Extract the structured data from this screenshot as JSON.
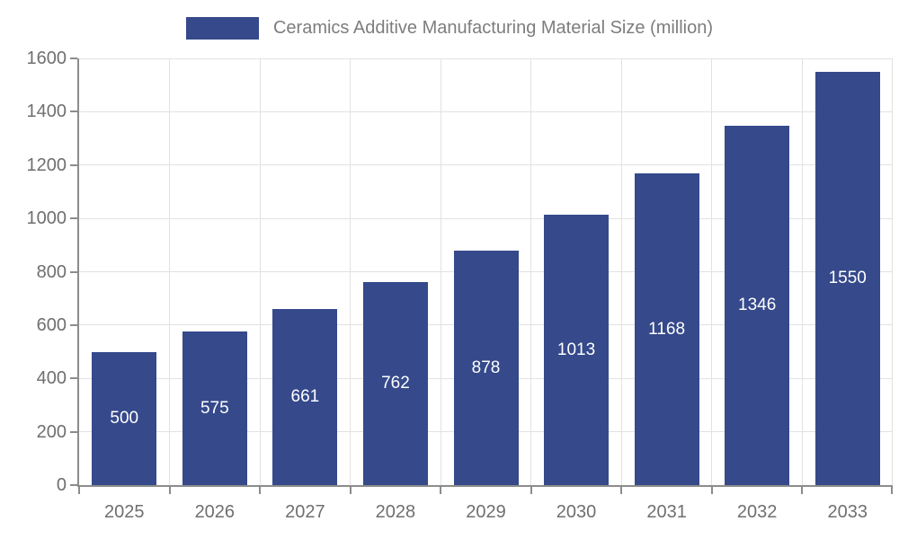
{
  "legend": {
    "label": "Ceramics Additive Manufacturing Material Size (million)",
    "swatch_color": "#35498b"
  },
  "chart_data": {
    "type": "bar",
    "title": "Ceramics Additive Manufacturing Material Size (million)",
    "categories": [
      "2025",
      "2026",
      "2027",
      "2028",
      "2029",
      "2030",
      "2031",
      "2032",
      "2033"
    ],
    "values": [
      500,
      575,
      661,
      762,
      878,
      1013,
      1168,
      1346,
      1550
    ],
    "xlabel": "",
    "ylabel": "",
    "ylim": [
      0,
      1600
    ],
    "ytick_step": 200,
    "ytick_labels": [
      "0",
      "200",
      "400",
      "600",
      "800",
      "1000",
      "1200",
      "1400",
      "1600"
    ],
    "grid": true,
    "legend_position": "top",
    "bar_color": "#35498b",
    "bar_label_color": "#ffffff",
    "grid_color": "#e2e2e2",
    "axis_color": "#8c8c8c",
    "tick_label_color": "#6f6f6f",
    "legend_text_color": "#7d7d7d"
  }
}
